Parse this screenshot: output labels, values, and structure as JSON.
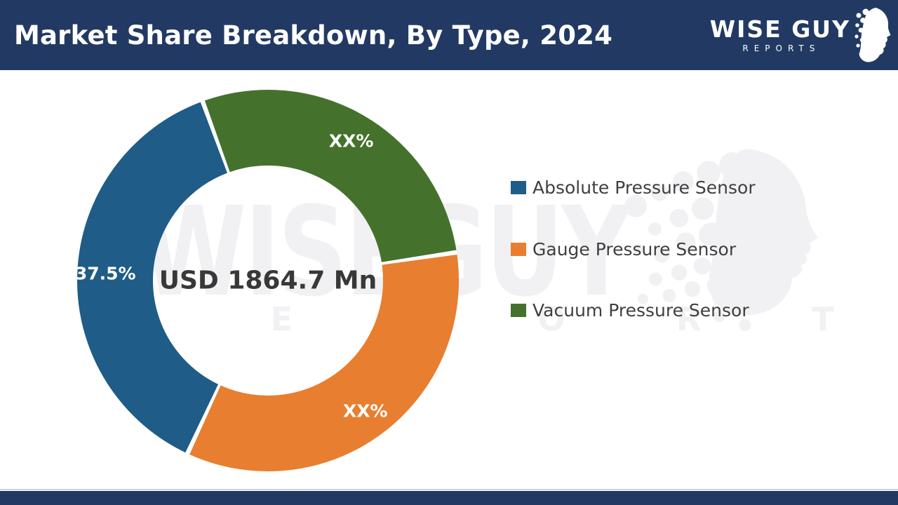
{
  "header": {
    "title": "Market Share Breakdown, By Type, 2024",
    "logo": {
      "line1": "WISE GUY",
      "line2": "REPORTS"
    }
  },
  "watermark": {
    "wordmark": "WISEGUY",
    "reports": "R E P O R T S"
  },
  "chart_data": {
    "type": "pie",
    "subtype": "donut",
    "title": "Market Share Breakdown, By Type, 2024",
    "center_label": "USD 1864.7 Mn",
    "start_angle_deg_clockwise_from_top": -20,
    "segments": [
      {
        "name": "Vacuum Pressure Sensor",
        "label": "XX%",
        "pct": 28.2,
        "color": "#44722C"
      },
      {
        "name": "Gauge Pressure Sensor",
        "label": "XX%",
        "pct": 34.3,
        "color": "#E87E2F"
      },
      {
        "name": "Absolute Pressure Sensor",
        "label": "37.5%",
        "pct": 37.5,
        "color": "#1F5C87"
      }
    ],
    "legend": [
      {
        "label": "Absolute Pressure Sensor",
        "color": "#1F5C87"
      },
      {
        "label": "Gauge Pressure Sensor",
        "color": "#E87E2F"
      },
      {
        "label": "Vacuum Pressure Sensor",
        "color": "#44722C"
      }
    ],
    "geometry": {
      "outer_radius": 272,
      "inner_radius": 164,
      "label_radius": 232
    }
  },
  "colors": {
    "header_bar": "#223A63",
    "footer_bar": "#223A63",
    "watermark": "#f1f1f3",
    "text_dark": "#3f3f3f"
  }
}
